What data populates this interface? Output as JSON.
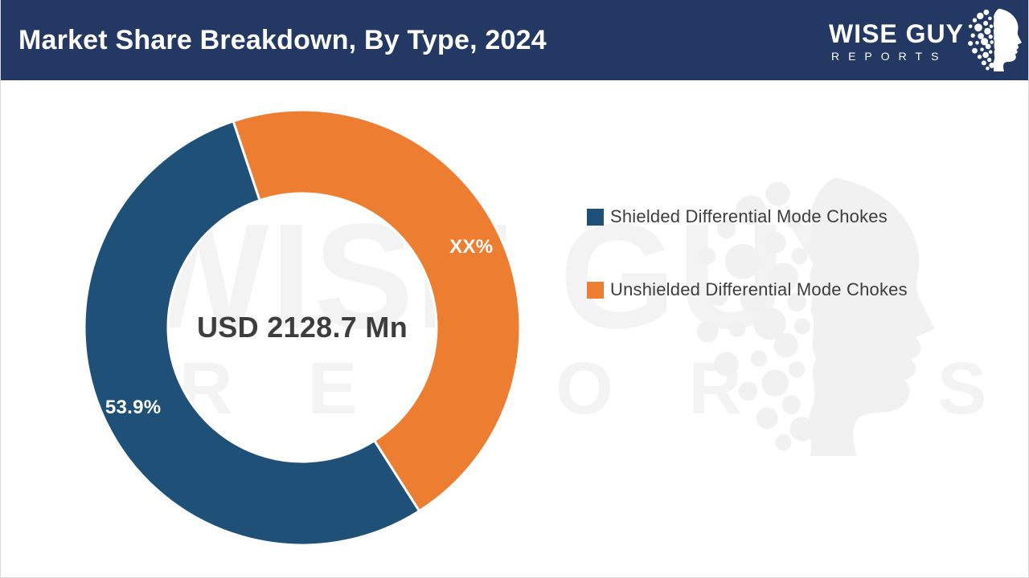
{
  "header": {
    "title": "Market Share Breakdown, By Type, 2024",
    "bg_color": "#233862",
    "logo": {
      "line1": "WISE GUY",
      "line2": "REPORTS"
    }
  },
  "watermark": {
    "line1": "WISE GUY",
    "line2": "R E P O R T S"
  },
  "chart_data": {
    "type": "pie",
    "subtype": "donut",
    "title": "Market Share Breakdown, By Type, 2024",
    "center_label": "USD 2128.7 Mn",
    "start_angle_deg": 147.5,
    "legend_position": "right",
    "categories": [
      "Shielded Differential Mode Chokes",
      "Unshielded Differential Mode Chokes"
    ],
    "values": [
      53.9,
      46.1
    ],
    "segments": [
      {
        "label": "Shielded Differential Mode Chokes",
        "value_pct": 53.9,
        "display": "53.9%",
        "color": "#1F5078"
      },
      {
        "label": "Unshielded Differential Mode Chokes",
        "value_pct": 46.1,
        "display": "XX%",
        "color": "#ED7D31"
      }
    ]
  }
}
